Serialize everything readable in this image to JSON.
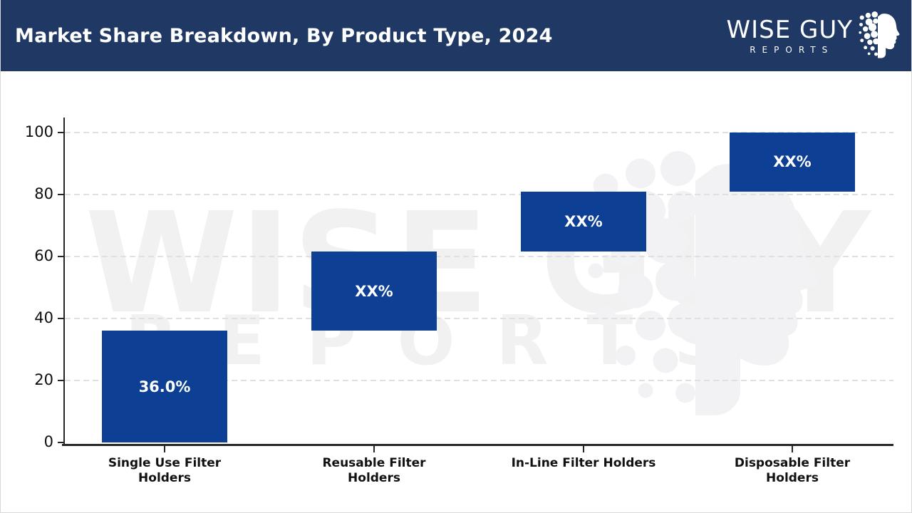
{
  "header": {
    "title": "Market Share Breakdown, By Product Type, 2024",
    "logo": {
      "name": "WISE GUY",
      "sub": "REPORTS"
    }
  },
  "watermark": {
    "name": "WISE GUY",
    "sub": "REPORTS"
  },
  "chart_data": {
    "type": "bar",
    "variant": "waterfall-stacked-market-share",
    "title": "Market Share Breakdown, By Product Type, 2024",
    "categories": [
      "Single Use Filter Holders",
      "Reusable Filter Holders",
      "In-Line Filter Holders",
      "Disposable Filter Holders"
    ],
    "segments": [
      {
        "category": "Single Use Filter Holders",
        "start": 0,
        "end": 36,
        "label": "36.0%"
      },
      {
        "category": "Reusable Filter Holders",
        "start": 36,
        "end": 61.5,
        "label": "XX%"
      },
      {
        "category": "In-Line Filter Holders",
        "start": 61.5,
        "end": 81,
        "label": "XX%"
      },
      {
        "category": "Disposable Filter Holders",
        "start": 81,
        "end": 100,
        "label": "XX%"
      }
    ],
    "xlabel": "",
    "ylabel": "",
    "ylim": [
      0,
      100
    ],
    "yticks": [
      0,
      20,
      40,
      60,
      80,
      100
    ],
    "grid": "horizontal-dashed",
    "legend": "none",
    "bar_color": "#0d4094",
    "bar_label_color": "#ffffff"
  },
  "colors": {
    "header_bg": "#1f3864",
    "bar": "#0d4094",
    "axis": "#262626",
    "gridline": "#e0e0e0",
    "watermark": "#f1f1f2",
    "title_text": "#ffffff"
  }
}
